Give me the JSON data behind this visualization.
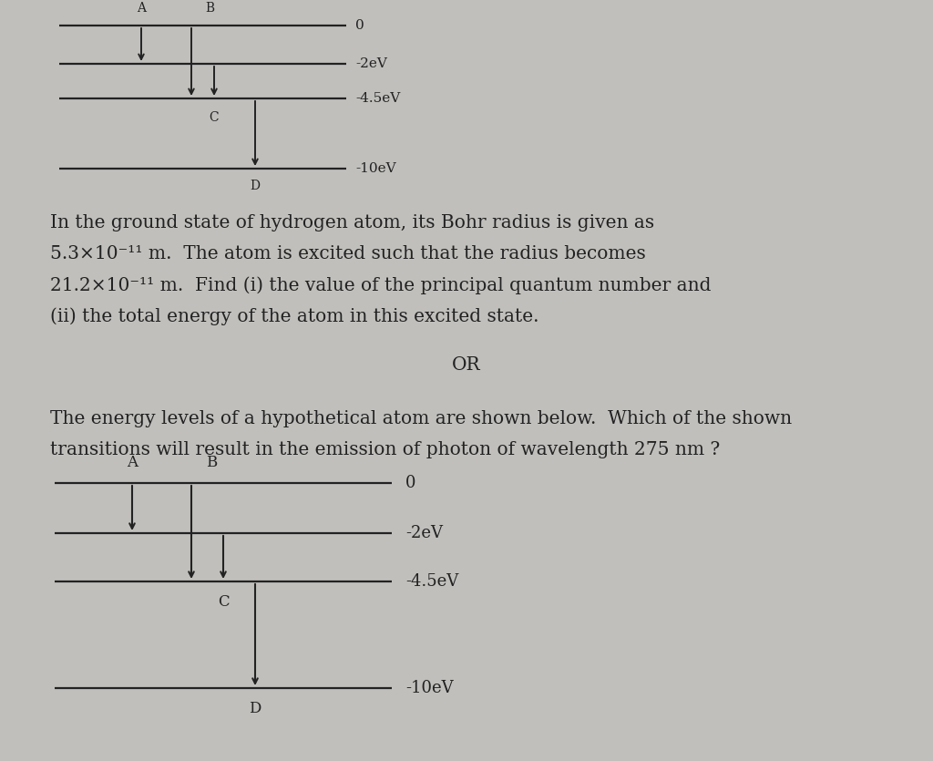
{
  "bg_color": "#c0bfbc",
  "text_color": "#1a1a1a",
  "paragraph1_line1": "In the ground state of hydrogen atom, its Bohr radius is given as",
  "paragraph1_line2": "5.3×10⁻¹¹ m.  The atom is excited such that the radius becomes",
  "paragraph1_line3": "21.2×10⁻¹¹ m.  Find (i) the value of the principal quantum number and",
  "paragraph1_line4": "(ii) the total energy of the atom in this excited state.",
  "or_text": "OR",
  "paragraph2_line1": "The energy levels of a hypothetical atom are shown below.  Which of the shown",
  "paragraph2_line2": "transitions will result in the emission of photon of wavelength 275 nm ?",
  "energy_labels": [
    "0",
    "-2eV",
    "-4.5eV",
    "-10eV"
  ]
}
